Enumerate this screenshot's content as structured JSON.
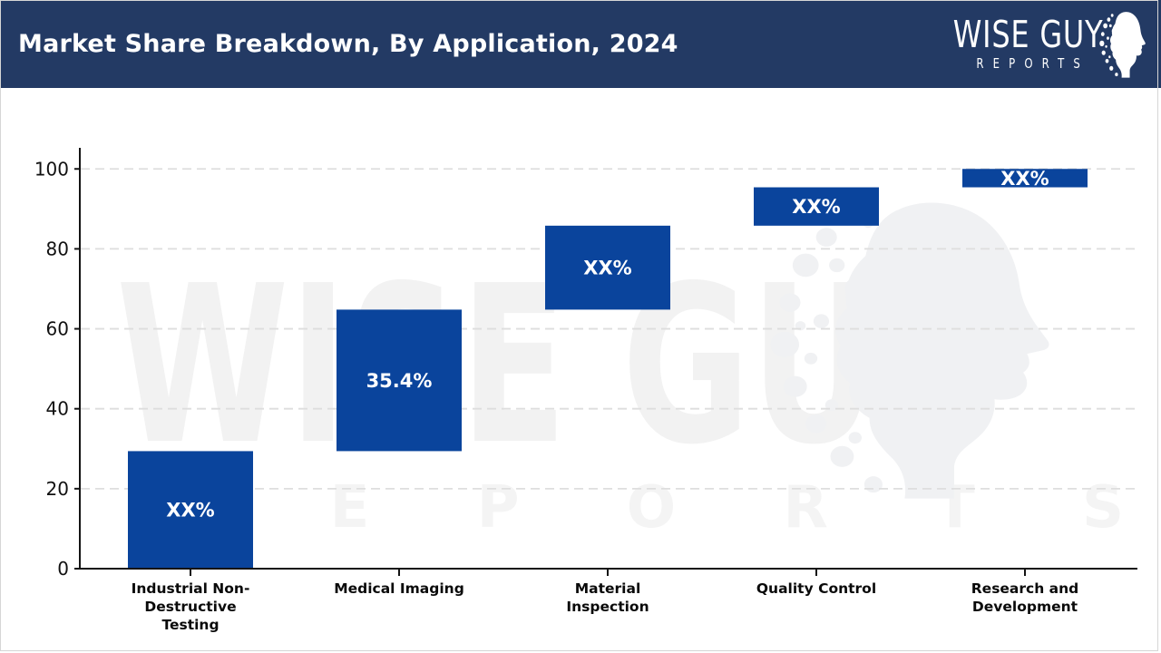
{
  "header": {
    "title": "Market Share Breakdown, By Application, 2024",
    "background_color": "#233a64",
    "brand": {
      "name": "WISE GUY",
      "subname": "REPORTS"
    }
  },
  "watermark": {
    "name": "WISE GUY",
    "subname": "R E P O R T S"
  },
  "chart_data": {
    "type": "bar",
    "subtype": "waterfall-breakdown",
    "title": "Market Share Breakdown, By Application, 2024",
    "categories": [
      "Industrial Non-Destructive Testing",
      "Medical Imaging",
      "Material Inspection",
      "Quality Control",
      "Research and Development"
    ],
    "category_lines": [
      [
        "Industrial Non-",
        "Destructive",
        "Testing"
      ],
      [
        "Medical Imaging"
      ],
      [
        "Material",
        "Inspection"
      ],
      [
        "Quality Control"
      ],
      [
        "Research and",
        "Development"
      ]
    ],
    "series": [
      {
        "name": "Market share (%)",
        "segments": [
          {
            "category": "Industrial Non-Destructive Testing",
            "start": 0,
            "end": 29.4,
            "value": 29.4,
            "label": "XX%"
          },
          {
            "category": "Medical Imaging",
            "start": 29.4,
            "end": 64.8,
            "value": 35.4,
            "label": "35.4%"
          },
          {
            "category": "Material Inspection",
            "start": 64.8,
            "end": 85.8,
            "value": 21.0,
            "label": "XX%"
          },
          {
            "category": "Quality Control",
            "start": 85.8,
            "end": 95.4,
            "value": 9.6,
            "label": "XX%"
          },
          {
            "category": "Research and Development",
            "start": 95.4,
            "end": 100,
            "value": 4.6,
            "label": "XX%"
          }
        ]
      }
    ],
    "ytick_labels": [
      "0",
      "20",
      "40",
      "60",
      "80",
      "100"
    ],
    "yticks": [
      0,
      20,
      40,
      60,
      80,
      100
    ],
    "ylim": [
      0,
      105
    ],
    "xlabel": "",
    "ylabel": "",
    "grid": "horizontal-dashed",
    "legend": "none",
    "bar_color": "#0a449c",
    "bar_label_color": "#ffffff",
    "axis_color": "#141414",
    "grid_color": "#dedede",
    "tick_label_color": "#111111"
  }
}
